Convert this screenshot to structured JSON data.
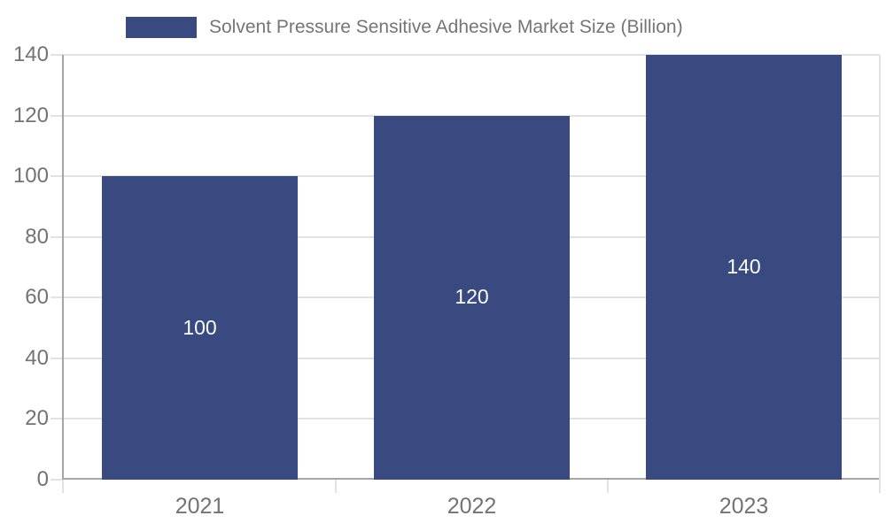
{
  "legend": {
    "label": "Solvent Pressure Sensitive Adhesive Market Size (Billion)"
  },
  "colors": {
    "bar": "#384a80",
    "gridline": "#e2e2e2",
    "axis_line": "#a6a6a6",
    "tick_text": "#737373",
    "legend_text": "#757575",
    "bar_label_text": "#fafafa",
    "background": "#ffffff"
  },
  "chart_data": {
    "type": "bar",
    "title": "Solvent Pressure Sensitive Adhesive Market Size (Billion)",
    "categories": [
      "2021",
      "2022",
      "2023"
    ],
    "values": [
      100,
      120,
      140
    ],
    "bar_labels": [
      "100",
      "120",
      "140"
    ],
    "y_ticks": [
      "0",
      "20",
      "40",
      "60",
      "80",
      "100",
      "120",
      "140"
    ],
    "y_tick_values": [
      0,
      20,
      40,
      60,
      80,
      100,
      120,
      140
    ],
    "xlabel": "",
    "ylabel": "",
    "ylim": [
      0,
      140
    ],
    "ytick_step": 20,
    "grid": true,
    "legend_position": "top"
  }
}
